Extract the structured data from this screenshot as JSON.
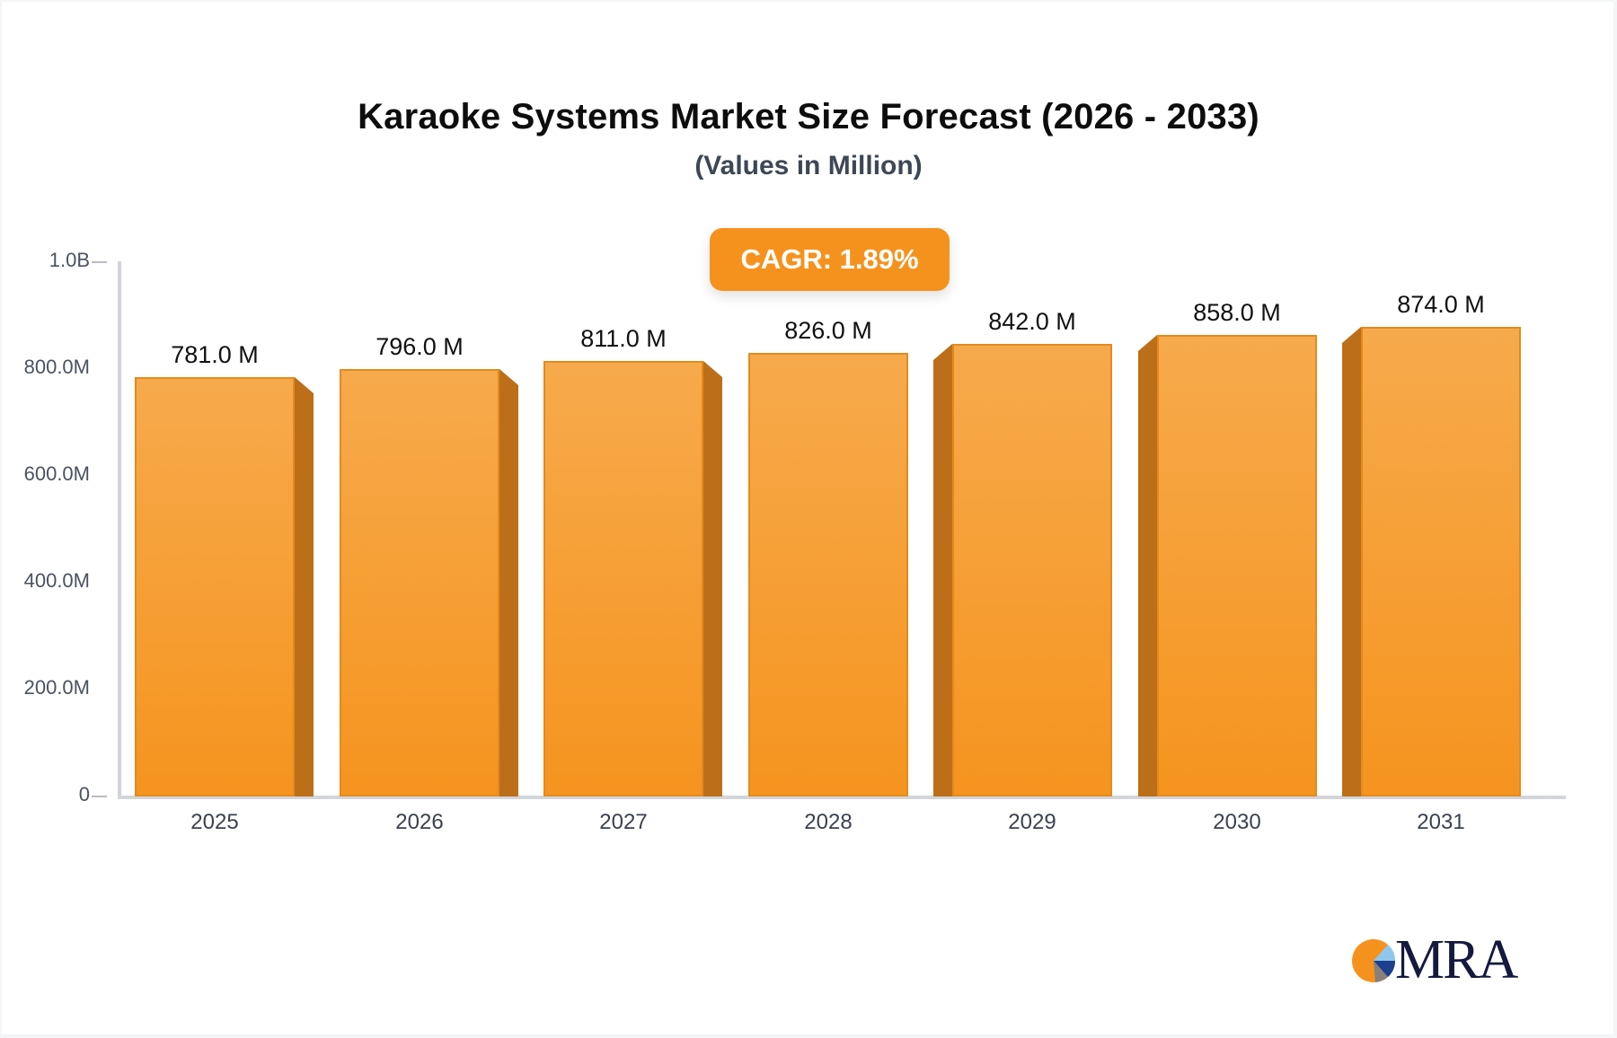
{
  "title": "Karaoke Systems Market Size Forecast (2026 - 2033)",
  "subtitle": "(Values in Million)",
  "badge": {
    "label": "CAGR: 1.89%",
    "color": "#f5921e"
  },
  "y_axis": {
    "ticks": [
      "1.0B",
      "800.0M",
      "600.0M",
      "400.0M",
      "200.0M",
      "0"
    ]
  },
  "bars": [
    {
      "year": "2025",
      "value_label": "781.0 M"
    },
    {
      "year": "2026",
      "value_label": "796.0 M"
    },
    {
      "year": "2027",
      "value_label": "811.0 M"
    },
    {
      "year": "2028",
      "value_label": "826.0 M"
    },
    {
      "year": "2029",
      "value_label": "842.0 M"
    },
    {
      "year": "2030",
      "value_label": "858.0 M"
    },
    {
      "year": "2031",
      "value_label": "874.0 M"
    }
  ],
  "logo": {
    "text": "MRA"
  },
  "chart_data": {
    "type": "bar",
    "title": "Karaoke Systems Market Size Forecast (2026 - 2033)",
    "subtitle": "(Values in Million)",
    "categories": [
      "2025",
      "2026",
      "2027",
      "2028",
      "2029",
      "2030",
      "2031"
    ],
    "values": [
      781.0,
      796.0,
      811.0,
      826.0,
      842.0,
      858.0,
      874.0
    ],
    "unit": "Million",
    "xlabel": "",
    "ylabel": "",
    "ylim": [
      0,
      1000
    ],
    "y_tick_labels": [
      "0",
      "200.0M",
      "400.0M",
      "600.0M",
      "800.0M",
      "1.0B"
    ],
    "annotations": [
      "CAGR: 1.89%"
    ],
    "grid": false,
    "legend": "none",
    "bar_color": "#f5941f"
  }
}
